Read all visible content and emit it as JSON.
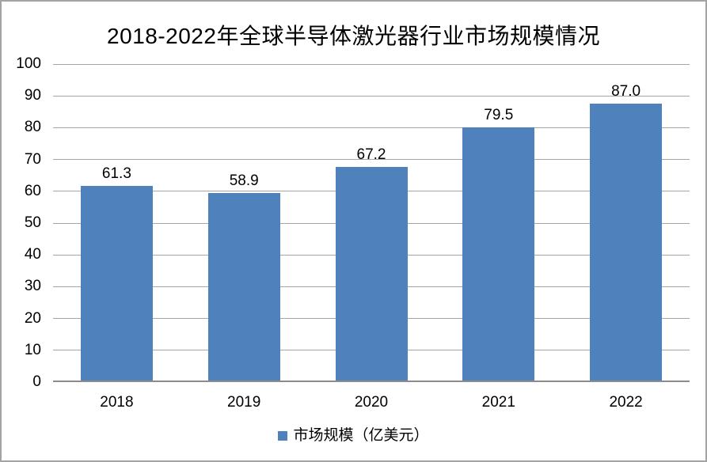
{
  "title": "2018-2022年全球半导体激光器行业市场规模情况",
  "colors": {
    "bar": "#4F81BD",
    "gridline": "#A6A6A6",
    "axis_line": "#8C8C8C",
    "frame_border": "#A3A3A3",
    "text": "#000000"
  },
  "legend": {
    "label": "市场规模（亿美元）",
    "marker_color": "#4F81BD"
  },
  "chart_data": {
    "type": "bar",
    "title": "2018-2022年全球半导体激光器行业市场规模情况",
    "categories": [
      "2018",
      "2019",
      "2020",
      "2021",
      "2022"
    ],
    "values": [
      61.3,
      58.9,
      67.2,
      79.5,
      87.0
    ],
    "data_labels": [
      "61.3",
      "58.9",
      "67.2",
      "79.5",
      "87.0"
    ],
    "series_name": "市场规模（亿美元）",
    "xlabel": "",
    "ylabel": "",
    "ylim": [
      0,
      100
    ],
    "yticks": [
      0,
      10,
      20,
      30,
      40,
      50,
      60,
      70,
      80,
      90,
      100
    ],
    "grid": true,
    "legend_position": "bottom"
  }
}
